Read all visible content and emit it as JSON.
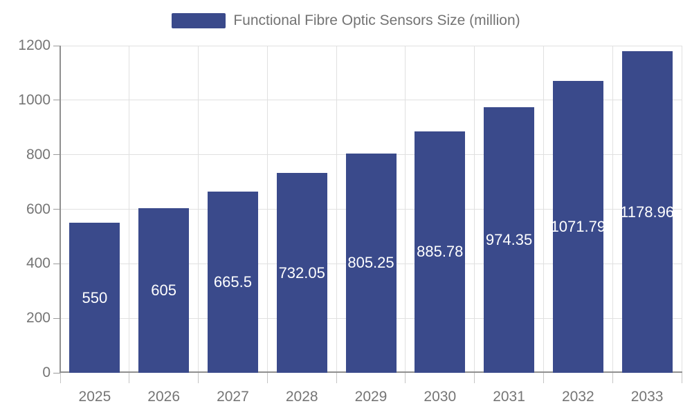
{
  "chart_data": {
    "type": "bar",
    "title": "Functional Fibre Optic Sensors Size (million)",
    "legend": [
      "Functional Fibre Optic Sensors Size (million)"
    ],
    "legend_position": "top",
    "categories": [
      "2025",
      "2026",
      "2027",
      "2028",
      "2029",
      "2030",
      "2031",
      "2032",
      "2033"
    ],
    "values": [
      550,
      605,
      665.5,
      732.05,
      805.25,
      885.78,
      974.35,
      1071.79,
      1178.96
    ],
    "value_labels": [
      "550",
      "605",
      "665.5",
      "732.05",
      "805.25",
      "885.78",
      "974.35",
      "1071.79",
      "1178.96"
    ],
    "xlabel": "",
    "ylabel": "",
    "ylim": [
      0,
      1200
    ],
    "ytick_interval": 200,
    "ytick_labels": [
      "0",
      "200",
      "400",
      "600",
      "800",
      "1000",
      "1200"
    ],
    "grid": true,
    "colors": {
      "bar": "#3A4A8B",
      "bar_label": "#FFFFFF",
      "axis_text": "#757575",
      "legend_text": "#737373",
      "grid_line": "#E0E0E0",
      "axis_line": "#8F8F8F",
      "y_tick": "#9A9A9A",
      "x_tick": "#C4C4C4",
      "background": "#FFFFFF"
    }
  }
}
